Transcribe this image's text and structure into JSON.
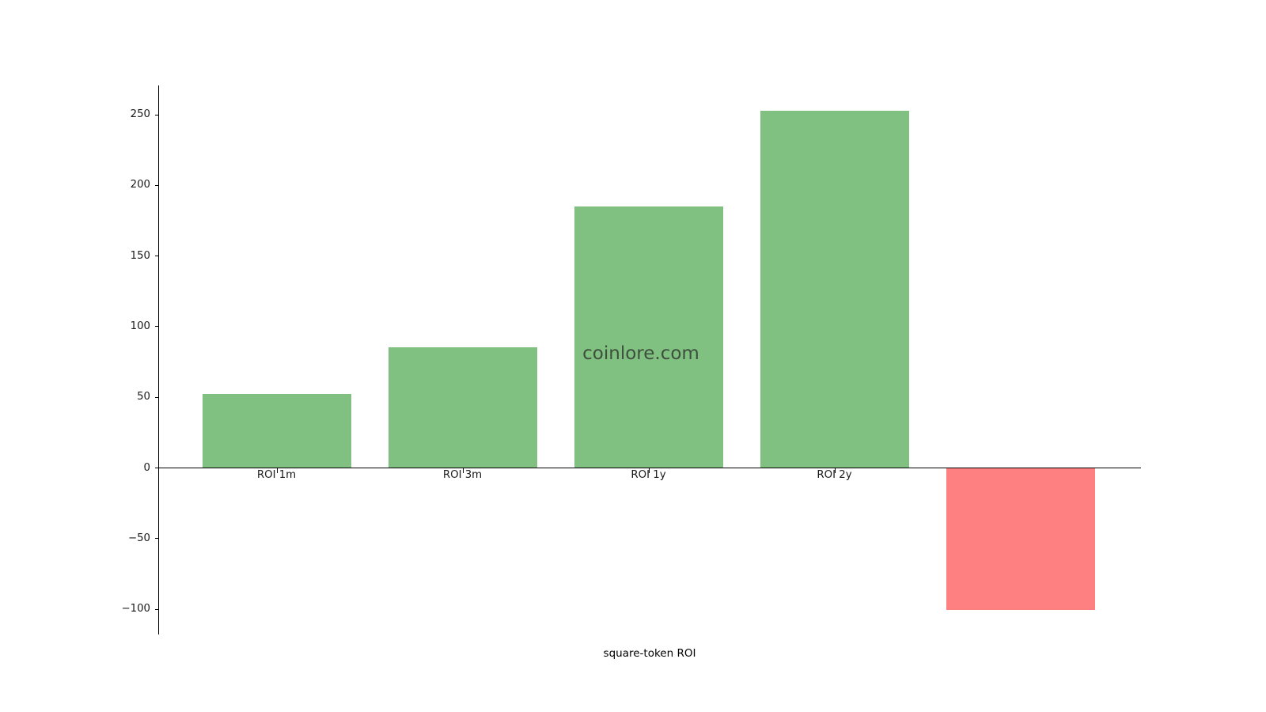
{
  "chart_data": {
    "type": "bar",
    "title": "square-token ROI",
    "categories": [
      "ROI 1m",
      "ROI 3m",
      "ROI 1y",
      "ROI 2y",
      ""
    ],
    "values": [
      52.5,
      85.5,
      185,
      253,
      -100
    ],
    "yticks": [
      250,
      200,
      150,
      100,
      50,
      0,
      -50,
      -100
    ],
    "ylim": [
      -118,
      271
    ],
    "xlabel": "",
    "ylabel": "",
    "grid": false,
    "legend_position": "none"
  },
  "watermark": {
    "text": "coinlore.com"
  },
  "colors": {
    "positive_bar": "#80c080",
    "negative_bar": "#ff8080",
    "axis": "#000000",
    "tick_label": "#1a1a1a",
    "watermark": "#3d4f3d",
    "background": "#ffffff"
  }
}
